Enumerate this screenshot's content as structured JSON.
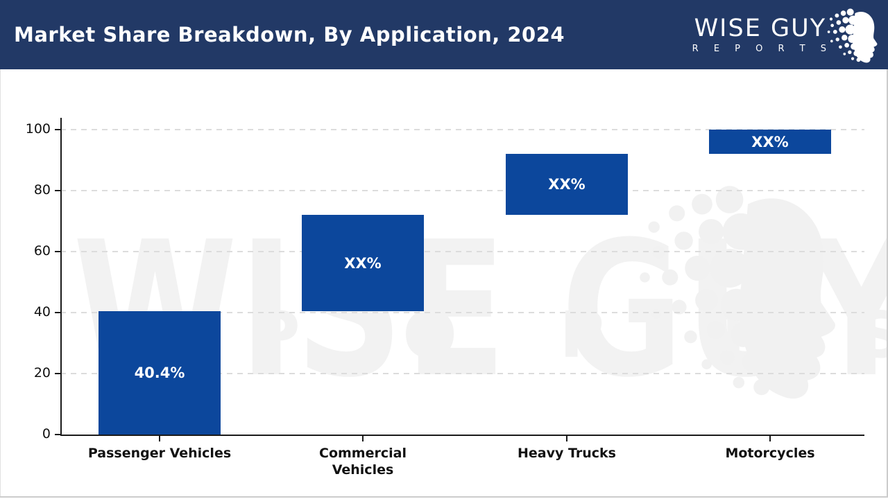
{
  "header": {
    "title": "Market Share Breakdown, By Application, 2024",
    "logo": {
      "line1": "WISE GUY",
      "line2": "R E P O R T S"
    }
  },
  "watermark": {
    "line1": "WISE GUY",
    "line2": "P O R T S"
  },
  "chart_data": {
    "type": "bar",
    "subtype": "floating-waterfall",
    "title": "Market Share Breakdown, By Application, 2024",
    "categories": [
      "Passenger Vehicles",
      "Commercial\nVehicles",
      "Heavy Trucks",
      "Motorcycles"
    ],
    "segments": [
      {
        "category": "Passenger Vehicles",
        "start": 0,
        "end": 40.4,
        "value": 40.4,
        "label": "40.4%"
      },
      {
        "category": "Commercial Vehicles",
        "start": 40.4,
        "end": 72,
        "value": 31.6,
        "label": "XX%"
      },
      {
        "category": "Heavy Trucks",
        "start": 72,
        "end": 92,
        "value": 20,
        "label": "XX%"
      },
      {
        "category": "Motorcycles",
        "start": 92,
        "end": 100,
        "value": 8,
        "label": "XX%"
      }
    ],
    "xlabel": "",
    "ylabel": "",
    "ylim": [
      0,
      100
    ],
    "yticks": [
      0,
      20,
      40,
      60,
      80,
      100
    ],
    "grid": "horizontal-dashed",
    "legend": "none",
    "bar_color": "#0c479c",
    "bar_label_color": "#ffffff",
    "axis_color": "#1a1a1a",
    "header_color": "#223966",
    "watermark_color": "#f2f2f2"
  }
}
